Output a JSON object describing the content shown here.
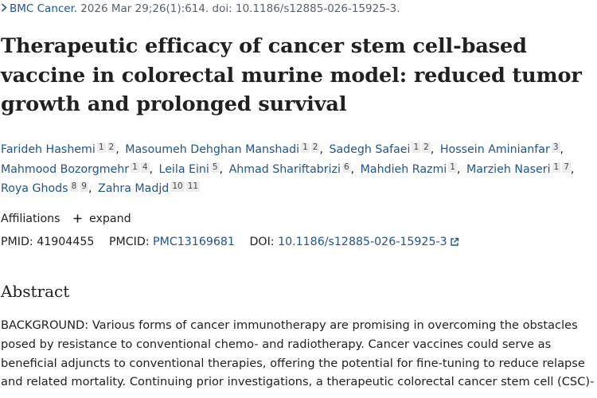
{
  "citation": {
    "journal": "BMC Cancer.",
    "details": "2026 Mar 29;26(1):614. doi: 10.1186/s12885-026-15925-3."
  },
  "title": "Therapeutic efficacy of cancer stem cell-based vaccine in colorectal murine model: reduced tumor growth and prolonged survival",
  "authors": [
    {
      "name": "Farideh Hashemi",
      "affs": [
        "1",
        "2"
      ]
    },
    {
      "name": "Masoumeh Dehghan Manshadi",
      "affs": [
        "1",
        "2"
      ]
    },
    {
      "name": "Sadegh Safaei",
      "affs": [
        "1",
        "2"
      ]
    },
    {
      "name": "Hossein Aminianfar",
      "affs": [
        "3"
      ]
    },
    {
      "name": "Mahmood Bozorgmehr",
      "affs": [
        "1",
        "4"
      ]
    },
    {
      "name": "Leila Eini",
      "affs": [
        "5"
      ]
    },
    {
      "name": "Ahmad Shariftabrizi",
      "affs": [
        "6"
      ]
    },
    {
      "name": "Mahdieh Razmi",
      "affs": [
        "1"
      ]
    },
    {
      "name": "Marzieh Naseri",
      "affs": [
        "1",
        "7"
      ]
    },
    {
      "name": "Roya Ghods",
      "affs": [
        "8",
        "9"
      ]
    },
    {
      "name": "Zahra Madjd",
      "affs": [
        "10",
        "11"
      ]
    }
  ],
  "affiliations": {
    "label": "Affiliations",
    "expand_label": "expand"
  },
  "ids": {
    "pmid_label": "PMID:",
    "pmid": "41904455",
    "pmcid_label": "PMCID:",
    "pmcid": "PMC13169681",
    "doi_label": "DOI:",
    "doi": "10.1186/s12885-026-15925-3"
  },
  "abstract": {
    "heading": "Abstract",
    "text": "BACKGROUND: Various forms of cancer immunotherapy are promising in overcoming the obstacles posed by resistance to conventional chemo- and radiotherapy. Cancer vaccines could serve as beneficial adjuncts to conventional therapies, offering the potential for fine-tuning to reduce relapse and related mortality. Continuing prior investigations, a therapeutic colorectal cancer stem cell (CSC)-"
  },
  "icons": {
    "citation_chevron": "chevron-right-icon",
    "expand": "plus-icon",
    "doi_link": "external-link-icon"
  },
  "colors": {
    "link": "#205493",
    "text": "#212121",
    "muted": "#5b616b",
    "sup_bg": "#ececec"
  }
}
